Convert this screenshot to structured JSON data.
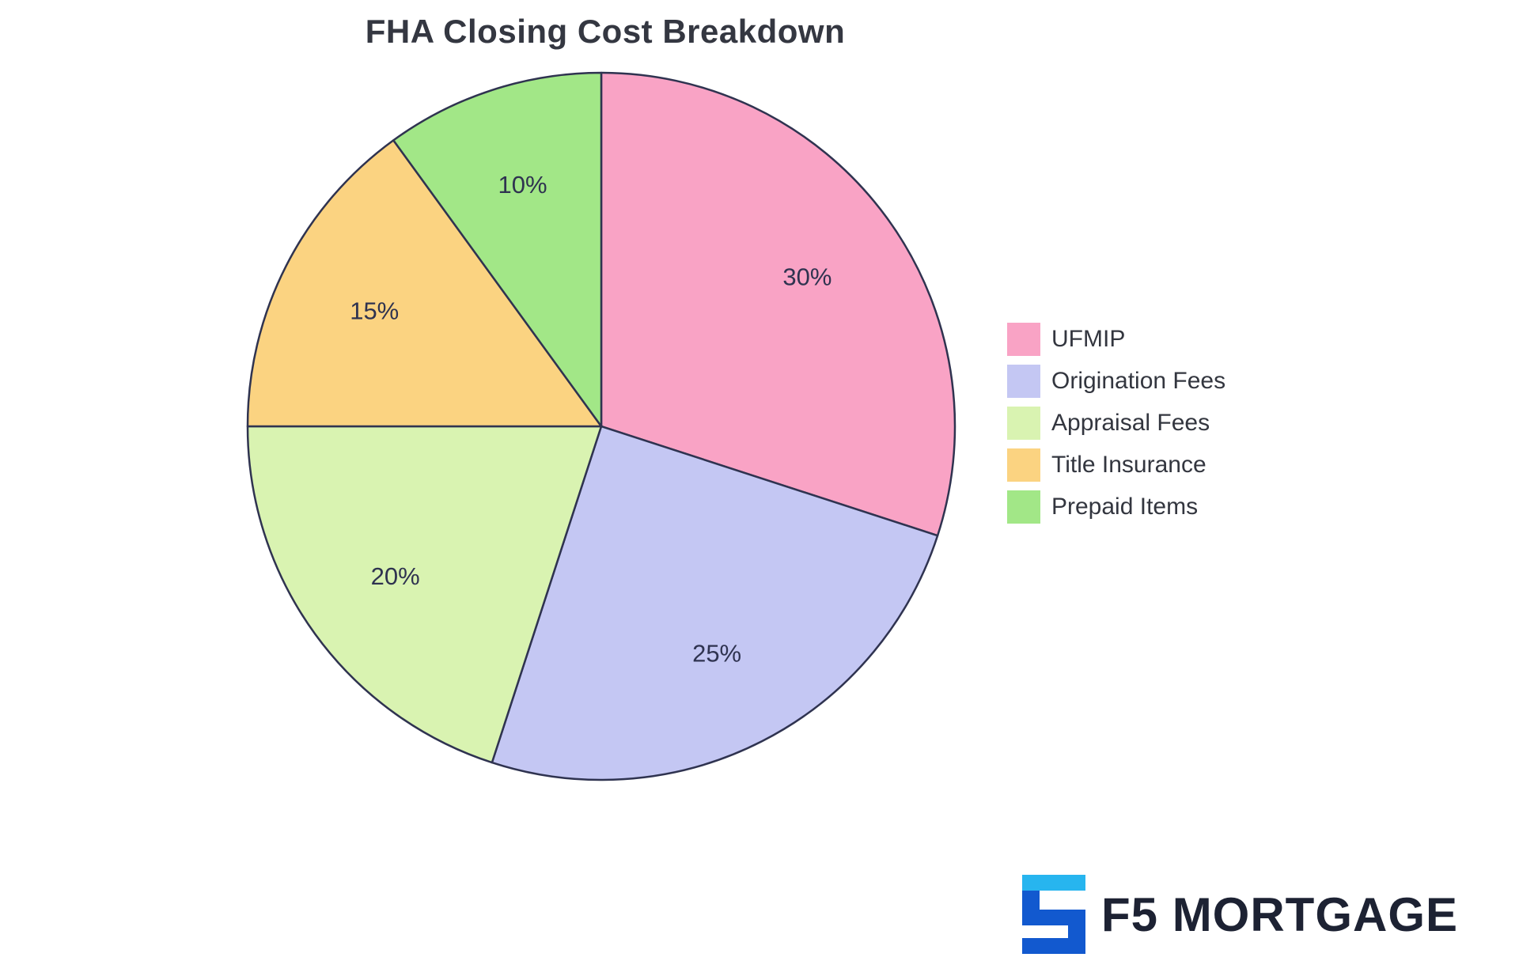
{
  "title": "FHA Closing Cost Breakdown",
  "chart_data": {
    "type": "pie",
    "title": "FHA Closing Cost Breakdown",
    "labels": [
      "UFMIP",
      "Origination Fees",
      "Appraisal Fees",
      "Title Insurance",
      "Prepaid Items"
    ],
    "values": [
      30,
      25,
      20,
      15,
      10
    ],
    "percent_labels": [
      "30%",
      "25%",
      "20%",
      "15%",
      "10%"
    ],
    "colors": [
      "#F9A3C5",
      "#C4C7F3",
      "#D9F3B1",
      "#FBD381",
      "#A2E787"
    ],
    "stroke_color": "#2F3350",
    "start_angle": "top",
    "direction": "clockwise",
    "legend_position": "right",
    "grid": false
  },
  "legend": {
    "items": [
      {
        "label": "UFMIP",
        "color": "#F9A3C5"
      },
      {
        "label": "Origination Fees",
        "color": "#C4C7F3"
      },
      {
        "label": "Appraisal Fees",
        "color": "#D9F3B1"
      },
      {
        "label": "Title Insurance",
        "color": "#FBD381"
      },
      {
        "label": "Prepaid Items",
        "color": "#A2E787"
      }
    ]
  },
  "branding": {
    "name": "F5 MORTGAGE",
    "icon": "f5-logo-icon",
    "icon_top_color": "#27B5EF",
    "icon_body_color": "#1259CF",
    "text_color": "#1D2233"
  }
}
